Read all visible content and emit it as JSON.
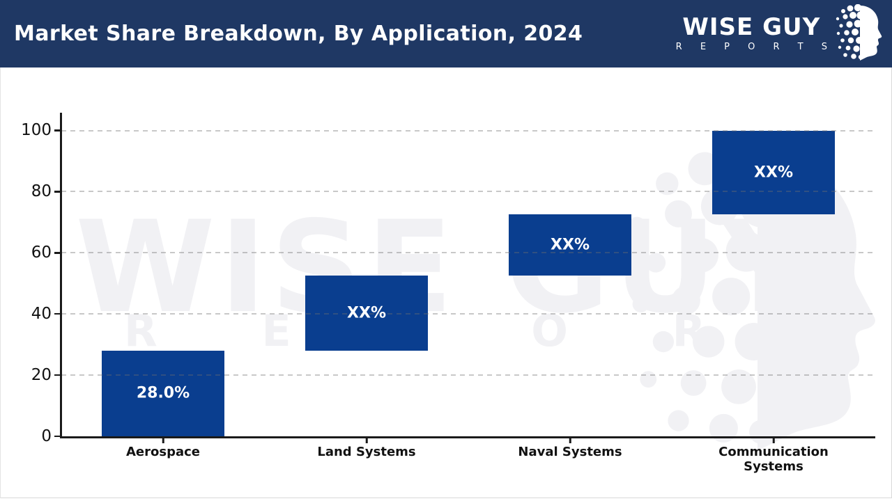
{
  "header": {
    "title": "Market Share Breakdown, By Application, 2024",
    "bg_color": "#1f3864",
    "logo": {
      "name": "WISE GUY",
      "sub": "R E P O R T S"
    }
  },
  "watermark": {
    "line1": "WISE GUY",
    "line2": "R E P O R T S"
  },
  "colors": {
    "bar": "#0a3e8f",
    "bar_label": "#ffffff",
    "axis": "#1a1a1a",
    "gridline": "#c9c9c9",
    "header_bg": "#1f3864",
    "watermark": "#f1f1f4",
    "edge_hairline": "#d9d9d9"
  },
  "chart_data": {
    "type": "bar",
    "subtype": "waterfall",
    "title": "Market Share Breakdown, By Application, 2024",
    "categories": [
      "Aerospace",
      "Land Systems",
      "Naval Systems",
      "Communication Systems"
    ],
    "series": [
      {
        "name": "Market share by application",
        "segments": [
          {
            "category": "Aerospace",
            "start": 0,
            "end": 28,
            "label": "28.0%"
          },
          {
            "category": "Land Systems",
            "start": 28,
            "end": 52.5,
            "label": "XX%"
          },
          {
            "category": "Naval Systems",
            "start": 52.5,
            "end": 72.5,
            "label": "XX%"
          },
          {
            "category": "Communication Systems",
            "start": 72.5,
            "end": 100,
            "label": "XX%"
          }
        ]
      }
    ],
    "xlabel": "",
    "ylabel": "",
    "yticks": [
      0,
      20,
      40,
      60,
      80,
      100
    ],
    "ylim": [
      0,
      105.8
    ],
    "grid": {
      "axis": "y",
      "style": "dashed",
      "on": true
    },
    "legend": "none",
    "bar_width_fraction": 0.6
  }
}
